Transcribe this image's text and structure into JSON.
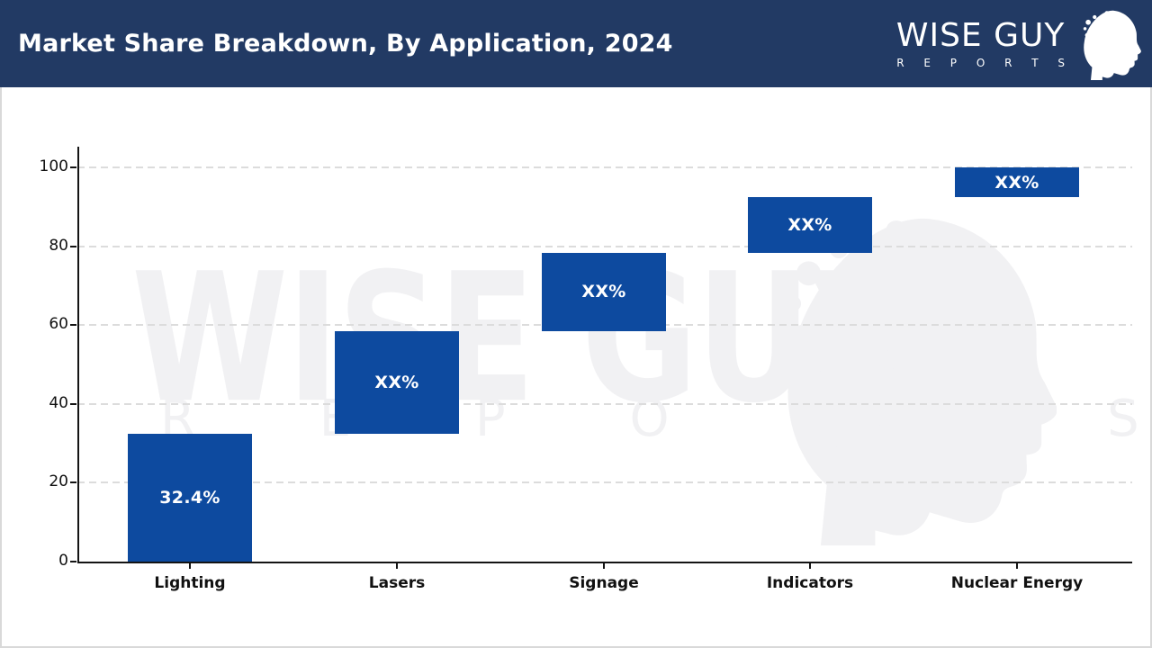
{
  "header": {
    "title": "Market Share Breakdown, By Application, 2024",
    "logo": {
      "line1": "WISE GUY",
      "line2": "R E P O R T S"
    }
  },
  "watermark": {
    "line1": "WISE GUY",
    "line2": "R E P O R T S"
  },
  "chart_data": {
    "type": "bar",
    "subtype": "waterfall",
    "title": "Market Share Breakdown, By Application, 2024",
    "categories": [
      "Lighting",
      "Lasers",
      "Signage",
      "Indicators",
      "Nuclear Energy"
    ],
    "segments": [
      [
        0,
        32.4
      ],
      [
        32.4,
        58.4
      ],
      [
        58.4,
        78.4
      ],
      [
        78.4,
        92.4
      ],
      [
        92.4,
        100
      ]
    ],
    "values": [
      32.4,
      26.0,
      20.0,
      14.0,
      7.6
    ],
    "bar_labels": [
      "32.4%",
      "XX%",
      "XX%",
      "XX%",
      "XX%"
    ],
    "y_ticks": [
      0,
      20,
      40,
      60,
      80,
      100
    ],
    "ylim": [
      0,
      105
    ],
    "xlabel": "",
    "ylabel": "",
    "grid": "horizontal-dashed",
    "legend": "none",
    "bar_color": "#0d4a9f"
  },
  "colors": {
    "header_bg": "#223a64",
    "bar": "#0d4a9f",
    "grid": "#dcdcdc",
    "axis": "#141414",
    "watermark": "#f1f1f3",
    "border": "#d9d9d9"
  }
}
